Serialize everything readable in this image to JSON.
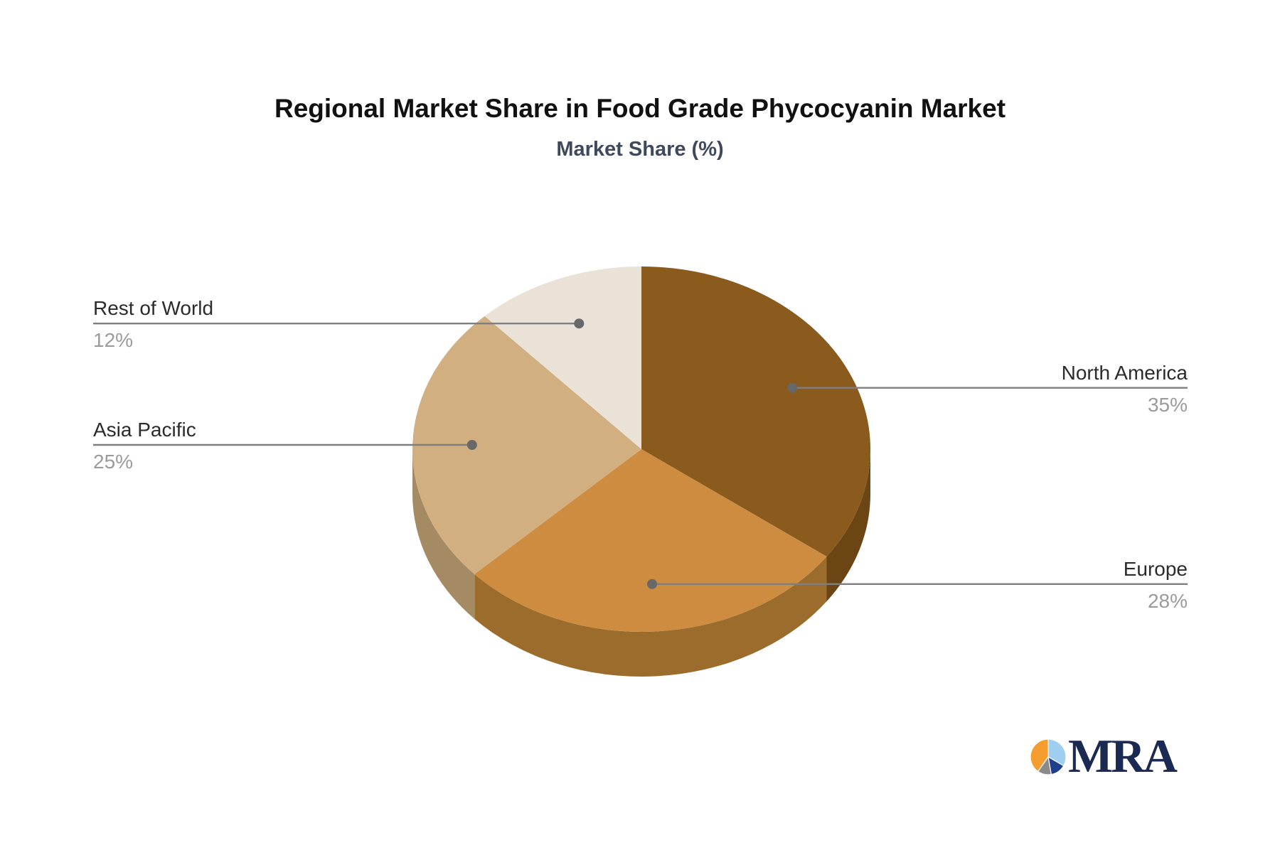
{
  "header": {
    "title": "Regional Market Share in Food Grade Phycocyanin Market",
    "subtitle": "Market Share (%)"
  },
  "chart_data": {
    "type": "pie",
    "style": "3d",
    "title": "Regional Market Share in Food Grade Phycocyanin Market",
    "subtitle": "Market Share (%)",
    "unit": "%",
    "direction": "clockwise",
    "start_angle_deg": 0,
    "legend_position": "none",
    "series": [
      {
        "name": "North America",
        "value": 35,
        "pct_label": "35%",
        "color": "#8B5A1D",
        "side_color": "#6C4514",
        "label_side": "right"
      },
      {
        "name": "Europe",
        "value": 28,
        "pct_label": "28%",
        "color": "#CE8C40",
        "side_color": "#9C6C2C",
        "label_side": "right"
      },
      {
        "name": "Asia Pacific",
        "value": 25,
        "pct_label": "25%",
        "color": "#D2AF80",
        "side_color": "#A58B63",
        "label_side": "left"
      },
      {
        "name": "Rest of World",
        "value": 12,
        "pct_label": "12%",
        "color": "#EAE2D6",
        "side_color": "#C9BFB0",
        "label_side": "left"
      }
    ],
    "label_colors": {
      "name_color": "#2B2B2B",
      "value_color": "#9B9B9B",
      "line_color": "#7F7F7F",
      "dot_color": "#686868"
    }
  },
  "logo": {
    "text": "MRA",
    "icon": "pie-chart-icon",
    "text_color": "#1B2A52",
    "icon_colors": {
      "light_blue": "#9FCFF0",
      "navy": "#1F3E8C",
      "gray": "#8A8A8A",
      "orange": "#F49C2D"
    }
  }
}
